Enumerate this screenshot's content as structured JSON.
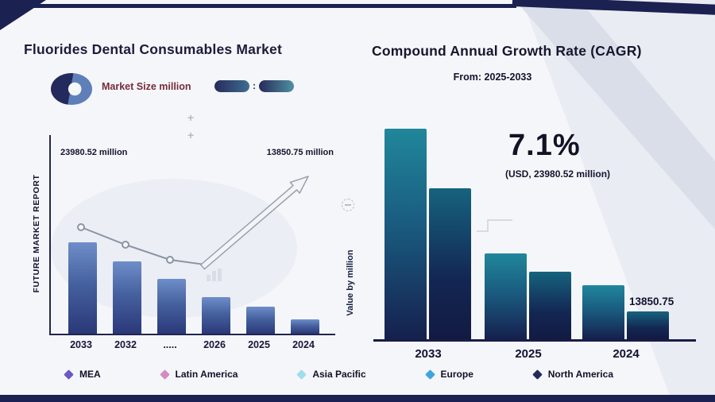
{
  "page": {
    "left": {
      "title": "Fluorides Dental Consumables Market",
      "icon_label": "Market Size million",
      "toggle_separator": ":",
      "annotation_left": "23980.52 million",
      "annotation_right": "13850.75 million",
      "side_label": "FUTURE MARKET REPORT",
      "plus_mark": "+"
    },
    "right": {
      "title": "Compound Annual Growth Rate (CAGR)",
      "subtitle": "From: 2025-2033",
      "cagr_value": "7.1%",
      "cagr_note": "(USD, 23980.52 million)",
      "ylabel": "Value by million",
      "bar_annotation": "13850.75"
    },
    "legend": {
      "items": [
        {
          "label": "MEA",
          "color": "#6d57c4"
        },
        {
          "label": "Latin America",
          "color": "#d38cc1"
        },
        {
          "label": "Asia Pacific",
          "color": "#9fdcec"
        },
        {
          "label": "Europe",
          "color": "#3ea4dd"
        },
        {
          "label": "North America",
          "color": "#232a5c"
        }
      ]
    },
    "colors": {
      "navy": "#1b2150",
      "teal": "#1f8398",
      "left_bar_top": "#6e8ec9",
      "left_bar_bottom": "#2a3878",
      "band": "#d9dee9"
    }
  },
  "chart_data": [
    {
      "type": "bar",
      "title": "Fluorides Dental Consumables Market",
      "series_label": "Market Size million",
      "categories": [
        "2033",
        "2032",
        ".....",
        "2026",
        "2025",
        "2024"
      ],
      "values": [
        23980.52,
        21500,
        19200,
        16800,
        15500,
        13850.75
      ],
      "values_note": "2033 (23980.52) and 2024 (13850.75) labeled on chart; intermediate values estimated from bar heights",
      "annotations": [
        "23980.52 million",
        "13850.75 million"
      ],
      "trend_line": "markers decline from 2033 toward 2026, then large arrow rises to top right",
      "ylim_baseline": 12000,
      "ymax": 24500,
      "grid": false,
      "legend_position": "top-left"
    },
    {
      "type": "bar",
      "title": "Compound Annual Growth Rate (CAGR)",
      "subtitle": "From: 2025-2033",
      "cagr": "7.1%",
      "cagr_basis": "(USD, 23980.52 million)",
      "categories": [
        "2033",
        "2025",
        "2024"
      ],
      "series": [
        {
          "name": "series-1",
          "values": [
            23980.52,
            15900,
            13850.75
          ]
        },
        {
          "name": "series-2",
          "values": [
            20100,
            14700,
            12150
          ]
        }
      ],
      "series_note": "only 2033 (23980.52) and the 13850.75 annotation are labeled; other values estimated from bar heights",
      "ylabel": "Value by million",
      "annotation": {
        "text": "13850.75",
        "category": "2024"
      },
      "ylim_baseline": 10350,
      "ymax": 24500,
      "grid": false
    }
  ]
}
